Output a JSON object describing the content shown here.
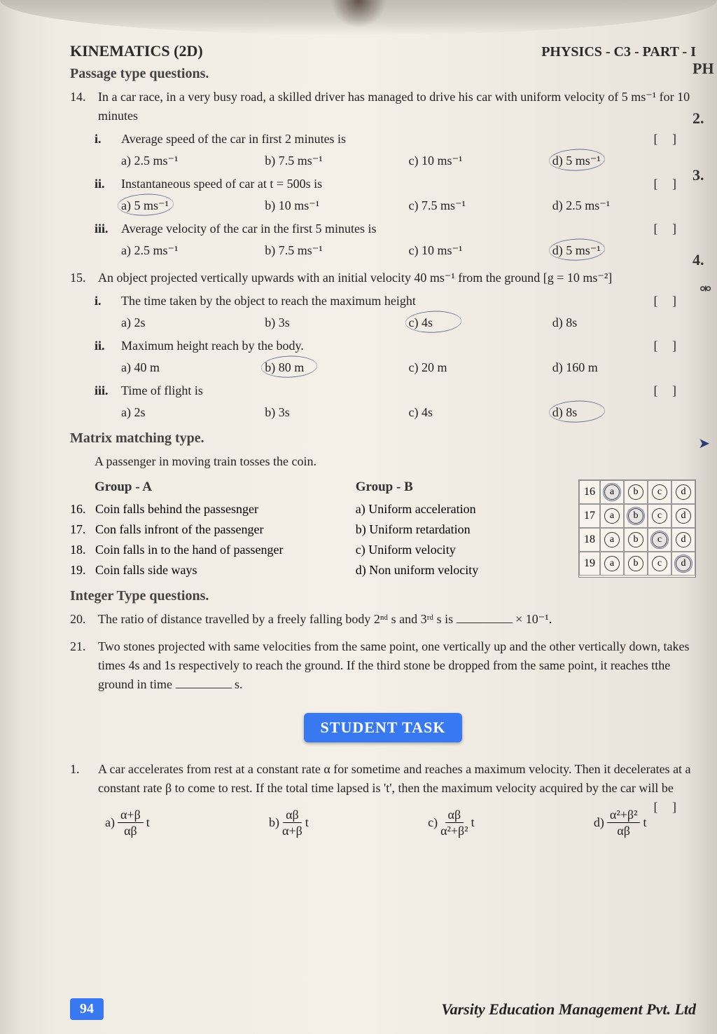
{
  "header": {
    "chapter": "KINEMATICS (2D)",
    "subject": "PHYSICS - C3 - PART - I"
  },
  "rightEdge": {
    "ph": "PH",
    "n2": "2.",
    "n3": "3.",
    "n4": "4.",
    "scribble": "⚮"
  },
  "sections": {
    "passage": "Passage type questions.",
    "matrix": "Matrix matching type.",
    "integer": "Integer Type questions.",
    "studentTask": "STUDENT TASK"
  },
  "q14": {
    "num": "14.",
    "text": "In a car race, in a very busy road, a skilled driver has managed to drive his car with uniform velocity of 5 ms⁻¹ for 10 minutes",
    "subs": [
      {
        "num": "i.",
        "text": "Average speed of the car in first 2 minutes is",
        "opts": [
          "a) 2.5 ms⁻¹",
          "b) 7.5 ms⁻¹",
          "c) 10 ms⁻¹",
          "d) 5 ms⁻¹"
        ],
        "marked": 3
      },
      {
        "num": "ii.",
        "text": "Instantaneous speed of car at t = 500s is",
        "opts": [
          "a) 5 ms⁻¹",
          "b) 10 ms⁻¹",
          "c) 7.5 ms⁻¹",
          "d) 2.5 ms⁻¹"
        ],
        "marked": 0
      },
      {
        "num": "iii.",
        "text": "Average velocity of the car in the first 5 minutes is",
        "opts": [
          "a) 2.5 ms⁻¹",
          "b) 7.5 ms⁻¹",
          "c) 10 ms⁻¹",
          "d) 5 ms⁻¹"
        ],
        "marked": 3
      }
    ]
  },
  "q15": {
    "num": "15.",
    "text": "An object projected vertically upwards with an initial velocity 40 ms⁻¹ from the ground [g = 10 ms⁻²]",
    "subs": [
      {
        "num": "i.",
        "text": "The time taken by the object to reach the maximum height",
        "opts": [
          "a) 2s",
          "b) 3s",
          "c) 4s",
          "d) 8s"
        ],
        "marked": 2
      },
      {
        "num": "ii.",
        "text": "Maximum height reach by the body.",
        "opts": [
          "a) 40 m",
          "b) 80 m",
          "c) 20 m",
          "d) 160 m"
        ],
        "marked": 1
      },
      {
        "num": "iii.",
        "text": "Time of flight is",
        "opts": [
          "a) 2s",
          "b) 3s",
          "c) 4s",
          "d) 8s"
        ],
        "marked": 3
      }
    ]
  },
  "matrix": {
    "intro": "A passenger in moving train tosses the coin.",
    "groupA_head": "Group - A",
    "groupB_head": "Group - B",
    "groupA": [
      {
        "num": "16.",
        "text": "Coin falls behind the passesnger"
      },
      {
        "num": "17.",
        "text": "Con falls infront of the passenger"
      },
      {
        "num": "18.",
        "text": "Coin falls in to the hand of passenger"
      },
      {
        "num": "19.",
        "text": "Coin falls side ways"
      }
    ],
    "groupB": [
      {
        "label": "a) Uniform acceleration"
      },
      {
        "label": "b) Uniform retardation"
      },
      {
        "label": "c) Uniform velocity"
      },
      {
        "label": "d) Non uniform velocity"
      }
    ],
    "grid": {
      "rows": [
        "16",
        "17",
        "18",
        "19"
      ],
      "cols": [
        "a",
        "b",
        "c",
        "d"
      ],
      "marked": {
        "16": [
          0
        ],
        "17": [
          1
        ],
        "18": [
          2
        ],
        "19": [
          3
        ]
      }
    }
  },
  "q20": {
    "num": "20.",
    "text_a": "The ratio of distance travelled by a freely falling body 2ⁿᵈ s and 3ʳᵈ s is ",
    "text_b": " × 10⁻¹."
  },
  "q21": {
    "num": "21.",
    "text_a": "Two stones projected with same velocities from the same point, one vertically up and the other vertically down, takes times 4s and 1s respectively to reach the ground. If the third stone be dropped from the same point, it reaches tthe ground in time ",
    "text_b": " s."
  },
  "task1": {
    "num": "1.",
    "text": "A car accelerates from rest at a constant rate α for sometime and reaches a maximum velocity. Then it decelerates at a constant rate β to come to rest. If the total time lapsed is 't', then the maximum velocity acquired by the car will be",
    "opts": {
      "a": {
        "label": "a)",
        "num": "α+β",
        "den": "αβ",
        "suffix": "t"
      },
      "b": {
        "label": "b)",
        "num": "αβ",
        "den": "α+β",
        "suffix": "t"
      },
      "c": {
        "label": "c)",
        "num": "αβ",
        "den": "α²+β²",
        "suffix": "t"
      },
      "d": {
        "label": "d)",
        "num": "α²+β²",
        "den": "αβ",
        "suffix": "t"
      }
    }
  },
  "footer": {
    "page": "94",
    "publisher": "Varsity Education Management Pvt. Ltd"
  }
}
